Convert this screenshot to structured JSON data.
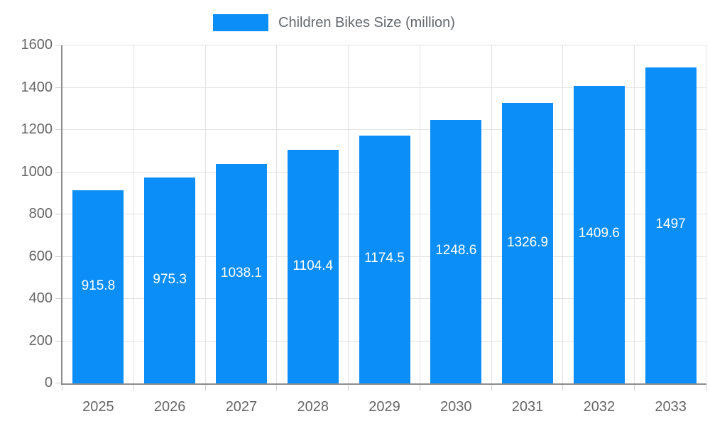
{
  "legend": {
    "label": "Children Bikes Size (million)"
  },
  "chart_data": {
    "type": "bar",
    "title": "Children Bikes Size (million)",
    "categories": [
      "2025",
      "2026",
      "2027",
      "2028",
      "2029",
      "2030",
      "2031",
      "2032",
      "2033"
    ],
    "values": [
      915.8,
      975.3,
      1038.1,
      1104.4,
      1174.5,
      1248.6,
      1326.9,
      1409.6,
      1497
    ],
    "xlabel": "",
    "ylabel": "",
    "ylim": [
      0,
      1600
    ],
    "yticks": [
      0,
      200,
      400,
      600,
      800,
      1000,
      1200,
      1400,
      1600
    ],
    "grid": true,
    "legend_position": "top-center",
    "value_label_style": "inside-middle-white"
  },
  "colors": {
    "bar": "#0c8ef9",
    "grid": "#e2e2e2",
    "axis_line": "#8c8c8c",
    "tick": "#cfcfcf",
    "axis_label": "#666666",
    "value_label": "#ffffff",
    "legend_text": "#65696d",
    "background": "#ffffff"
  }
}
